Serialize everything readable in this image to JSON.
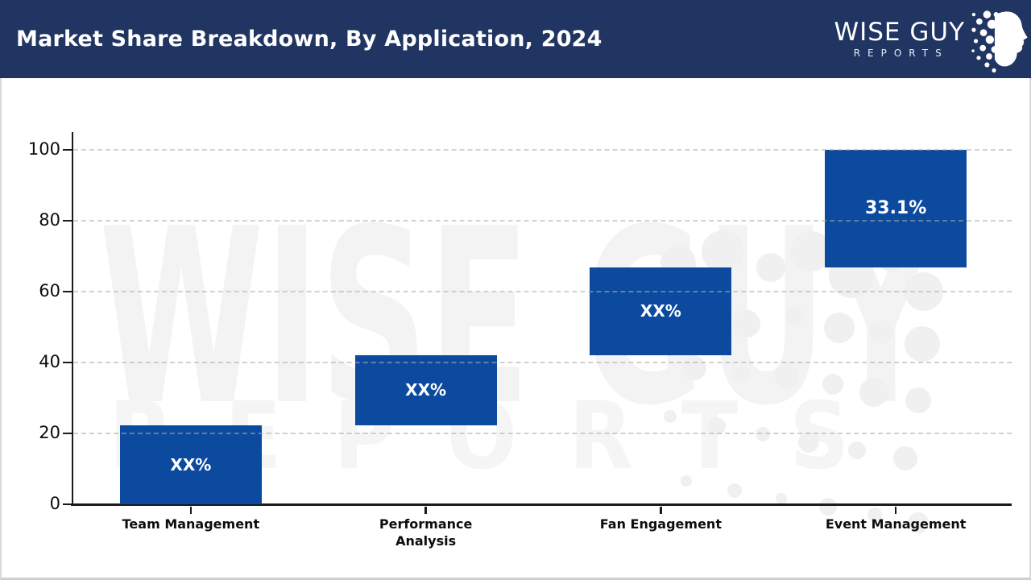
{
  "header": {
    "title": "Market Share Breakdown, By Application, 2024",
    "bg_color": "#203562",
    "logo": {
      "line1": "WISE GUY",
      "line2": "REPORTS",
      "head_icon": "dotted-head-profile"
    }
  },
  "watermark": {
    "line1": "WISE GUY",
    "line2": "REPORTS",
    "head_icon": "dotted-head-profile"
  },
  "chart_data": {
    "type": "bar",
    "subtype": "floating-waterfall",
    "title": "Market Share Breakdown, By Application, 2024",
    "categories": [
      "Team Management",
      "Performance\nAnalysis",
      "Fan Engagement",
      "Event Management"
    ],
    "bars": [
      {
        "category": "Team Management",
        "start": 0,
        "end": 22.3,
        "label": "XX%",
        "final": false
      },
      {
        "category": "Performance Analysis",
        "start": 22.3,
        "end": 42.1,
        "label": "XX%",
        "final": false
      },
      {
        "category": "Fan Engagement",
        "start": 42.1,
        "end": 66.9,
        "label": "XX%",
        "final": false
      },
      {
        "category": "Event Management",
        "start": 66.9,
        "end": 100,
        "label": "33.1%",
        "final": true
      }
    ],
    "yticks": [
      0,
      20,
      40,
      60,
      80,
      100
    ],
    "ylim": [
      0,
      105
    ],
    "xlabel": "",
    "ylabel": "",
    "bar_color": "#0b4a9e",
    "value_label_color": "#ffffff",
    "grid": "horizontal-dashed",
    "gridline_color": "#d5d5d5",
    "axis_color": "#1a1a1a",
    "legend": "none"
  }
}
